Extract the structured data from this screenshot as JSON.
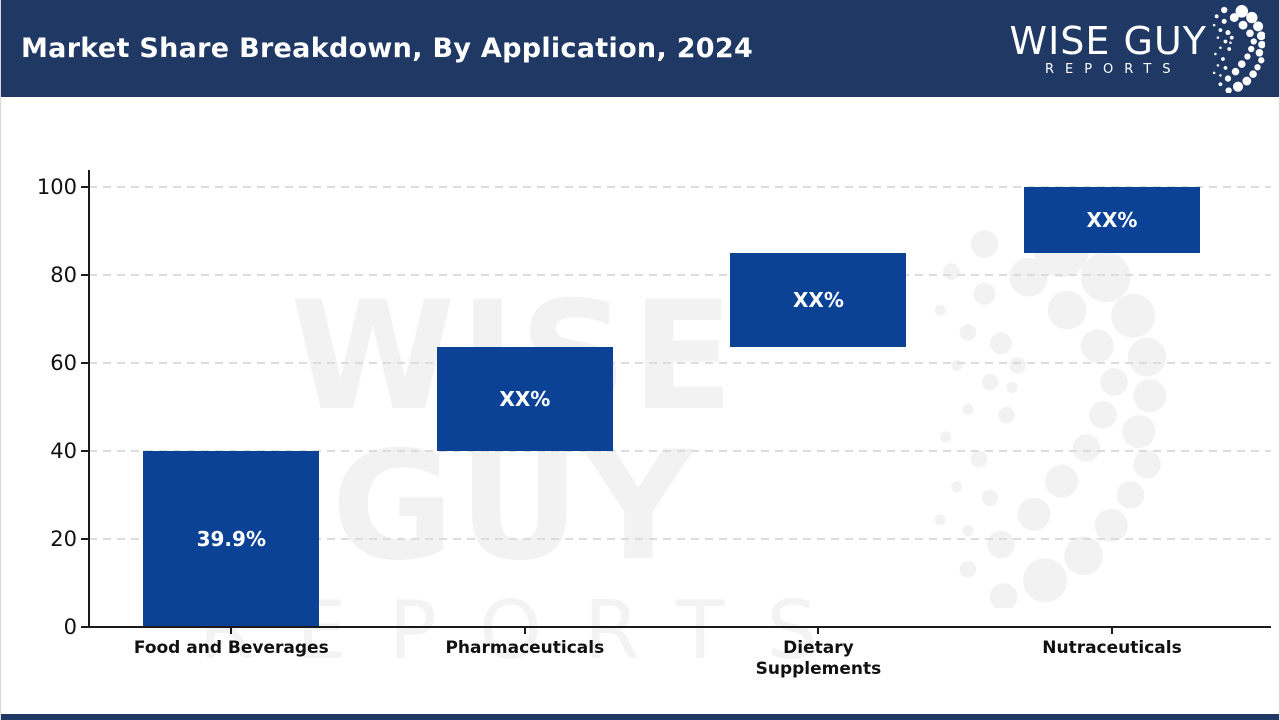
{
  "header": {
    "title": "Market Share Breakdown, By Application, 2024",
    "logo": {
      "line1": "WISE GUY",
      "line2": "REPORTS"
    }
  },
  "watermark": {
    "line1": "WISE GUY",
    "line2": "REPORTS"
  },
  "colors": {
    "header_bg": "#1f3864",
    "bar": "#0b4296",
    "grid": "#dcdcdc",
    "axis": "#1a1a1a",
    "bar_label": "#ffffff",
    "watermark": "#f2f2f3"
  },
  "chart_data": {
    "type": "bar",
    "subtype": "waterfall",
    "title": "Market Share Breakdown, By Application, 2024",
    "categories": [
      "Food and Beverages",
      "Pharmaceuticals",
      "Dietary\nSupplements",
      "Nutraceuticals"
    ],
    "bars": [
      {
        "category": "Food and Beverages",
        "start": 0,
        "end": 39.9,
        "label": "39.9%"
      },
      {
        "category": "Pharmaceuticals",
        "start": 39.9,
        "end": 63.5,
        "label": "XX%"
      },
      {
        "category": "Dietary Supplements",
        "start": 63.5,
        "end": 85.0,
        "label": "XX%"
      },
      {
        "category": "Nutraceuticals",
        "start": 85.0,
        "end": 100.0,
        "label": "XX%"
      }
    ],
    "ylim": [
      0,
      100
    ],
    "yticks": [
      0,
      20,
      40,
      60,
      80,
      100
    ],
    "xlabel": "",
    "ylabel": "",
    "grid": "dashed-horizontal",
    "legend": "none"
  }
}
